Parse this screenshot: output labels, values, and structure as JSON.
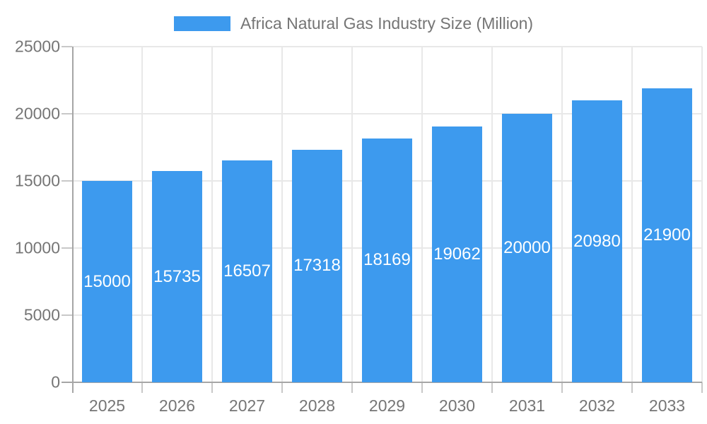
{
  "legend": {
    "position": "top-center"
  },
  "chart_data": {
    "type": "bar",
    "title": "Africa Natural Gas Industry Size (Million)",
    "categories": [
      "2025",
      "2026",
      "2027",
      "2028",
      "2029",
      "2030",
      "2031",
      "2032",
      "2033"
    ],
    "values": [
      15000,
      15735,
      16507,
      17318,
      18169,
      19062,
      20000,
      20980,
      21900
    ],
    "value_labels": [
      "15000",
      "15735",
      "16507",
      "17318",
      "18169",
      "19062",
      "20000",
      "20980",
      "21900"
    ],
    "ylim": [
      0,
      25000
    ],
    "yticks": [
      0,
      5000,
      10000,
      15000,
      20000,
      25000
    ],
    "ytick_labels": [
      "0",
      "5000",
      "10000",
      "15000",
      "20000",
      "25000"
    ],
    "grid": true,
    "legend_position": "top",
    "colors": {
      "bar": "#3D9AEE",
      "bar_label": "#FFFFFF",
      "grid": "#E8E8E8",
      "axis": "#A6A6A6",
      "tick": "#C8C8C8",
      "axis_text": "#757575",
      "legend_text": "#757575",
      "background": "#FFFFFF"
    }
  }
}
